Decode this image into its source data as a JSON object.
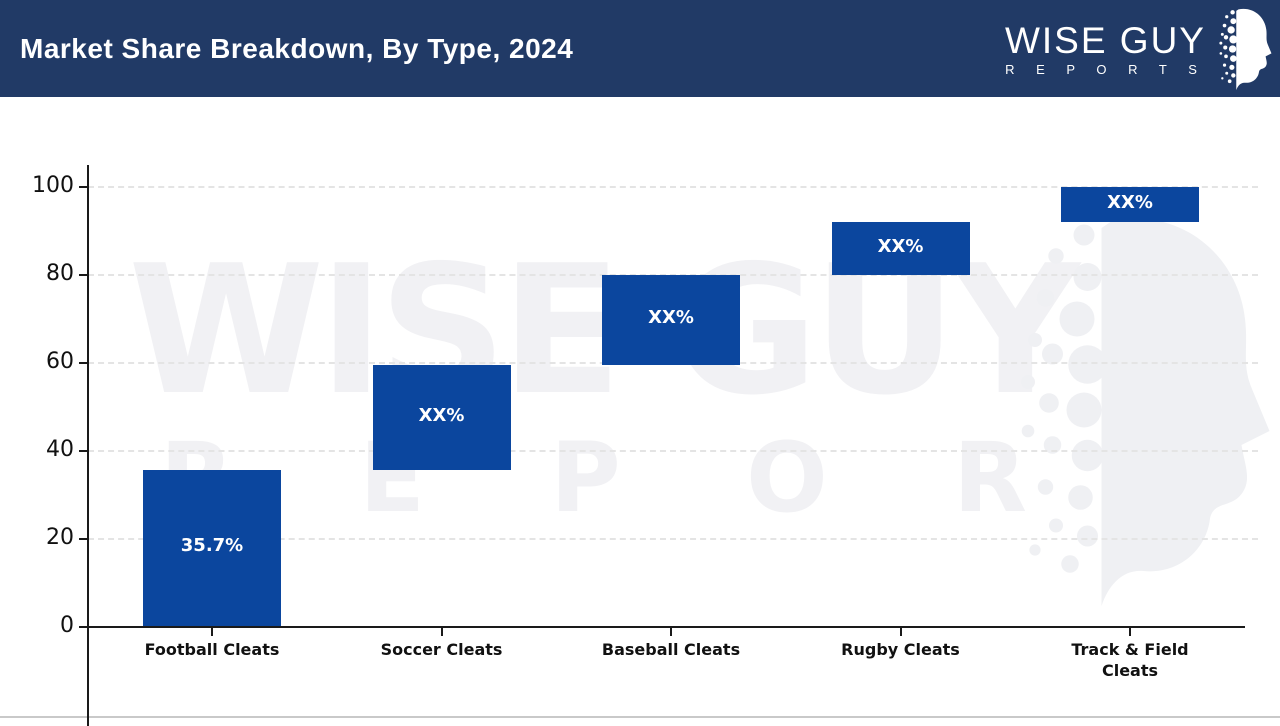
{
  "header": {
    "title": "Market Share Breakdown, By Type, 2024",
    "bg_color": "#213a66",
    "logo": {
      "line1": "WISE GUY",
      "line2": "R E P O R T S"
    }
  },
  "watermark": {
    "line1": "WISE GUY",
    "line2": "R E P O R T S"
  },
  "chart_data": {
    "type": "bar",
    "subtype": "waterfall",
    "title": "Market Share Breakdown, By Type, 2024",
    "xlabel": "",
    "ylabel": "",
    "ylim": [
      0,
      105
    ],
    "yticks": [
      0,
      20,
      40,
      60,
      80,
      100
    ],
    "grid": "horizontal dashed",
    "bar_color": "#0b469e",
    "categories": [
      "Football Cleats",
      "Soccer Cleats",
      "Baseball Cleats",
      "Rugby Cleats",
      "Track & Field Cleats"
    ],
    "segments": [
      {
        "category": "Football Cleats",
        "start": 0,
        "end": 35.7,
        "label": "35.7%"
      },
      {
        "category": "Soccer Cleats",
        "start": 35.7,
        "end": 59.5,
        "label": "XX%"
      },
      {
        "category": "Baseball Cleats",
        "start": 59.5,
        "end": 80,
        "label": "XX%"
      },
      {
        "category": "Rugby Cleats",
        "start": 80,
        "end": 92,
        "label": "XX%"
      },
      {
        "category": "Track & Field Cleats",
        "start": 92,
        "end": 100,
        "label": "XX%"
      }
    ]
  }
}
